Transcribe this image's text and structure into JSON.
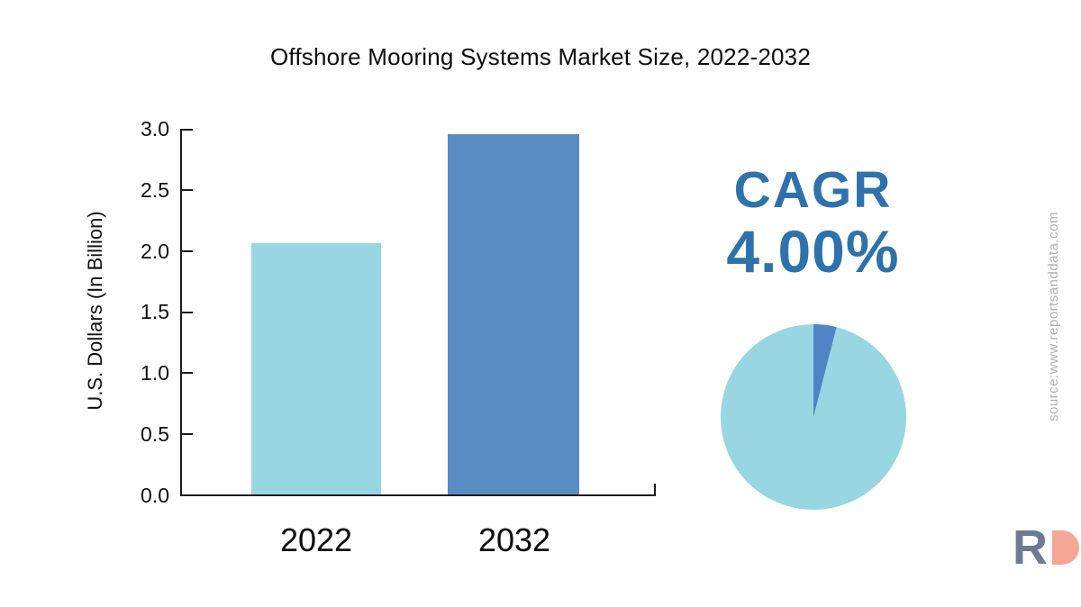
{
  "title": "Offshore Mooring Systems Market Size, 2022-2032",
  "watermark": "source:www.reportsanddata.com",
  "annotation": {
    "label": "CAGR",
    "value": "4.00%",
    "color": "#2f72ab"
  },
  "logo": {
    "letter": "R",
    "r_color": "#6e7b93",
    "d_color": "#f5a795"
  },
  "chart_data": [
    {
      "type": "bar",
      "title": "Offshore Mooring Systems Market Size, 2022-2032",
      "categories": [
        "2022",
        "2032"
      ],
      "values": [
        2.07,
        2.96
      ],
      "xlabel": "",
      "ylabel": "U.S. Dollars (In Billion)",
      "ylim": [
        0,
        3.0
      ],
      "ytick_labels_top_to_bottom": [
        "3.0",
        "2.5",
        "2.0",
        "1.5",
        "1.0",
        "0.5",
        "0.0"
      ],
      "bar_colors": [
        "#98d6e2",
        "#5a8cc4"
      ],
      "grid": false,
      "legend": "none",
      "axis_color": "#1a1a1a",
      "tick_direction": "in"
    },
    {
      "type": "pie",
      "slices": [
        {
          "name": "cagr-wedge",
          "value": 4,
          "color": "#4f85c4"
        },
        {
          "name": "remainder",
          "value": 96,
          "color": "#98d6e2"
        }
      ],
      "start": "12-oclock",
      "direction": "clockwise",
      "legend": "none"
    }
  ]
}
